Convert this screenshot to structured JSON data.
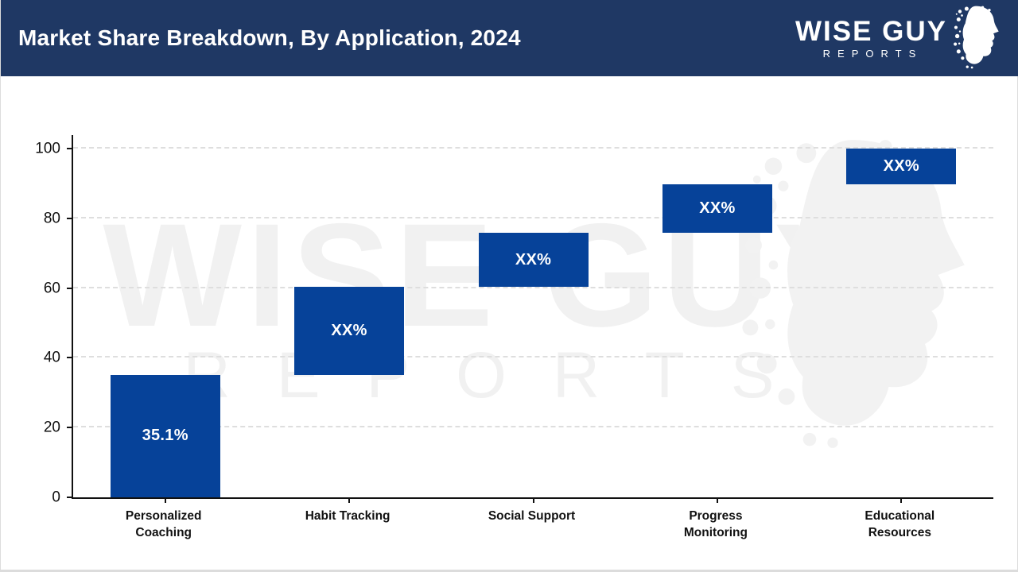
{
  "page": {
    "bg_color": "#ffffff",
    "border_color": "#dcdcdc"
  },
  "header": {
    "bg_color": "#1f3864",
    "title": "Market Share Breakdown, By Application, 2024",
    "logo": {
      "wordmark": "WISE GUY",
      "subtext": "REPORTS",
      "icon": "dotted-head-profile-icon"
    }
  },
  "watermark": {
    "line1": "WISE GUY",
    "line2": "REPORTS",
    "color": "#f1f1f1"
  },
  "chart_data": {
    "type": "bar",
    "subtype": "waterfall",
    "title": "Market Share Breakdown, By Application, 2024",
    "xlabel": "",
    "ylabel": "",
    "categories": [
      "Personalized Coaching",
      "Habit Tracking",
      "Social Support",
      "Progress Monitoring",
      "Educational Resources"
    ],
    "categories_lines": [
      [
        "Personalized",
        "Coaching"
      ],
      [
        "Habit Tracking"
      ],
      [
        "Social Support"
      ],
      [
        "Progress",
        "Monitoring"
      ],
      [
        "Educational",
        "Resources"
      ]
    ],
    "segments": [
      {
        "category": "Personalized Coaching",
        "start": 0,
        "end": 35.1,
        "label": "35.1%"
      },
      {
        "category": "Habit Tracking",
        "start": 35.1,
        "end": 60.3,
        "label": "XX%"
      },
      {
        "category": "Social Support",
        "start": 60.3,
        "end": 75.8,
        "label": "XX%"
      },
      {
        "category": "Progress Monitoring",
        "start": 75.8,
        "end": 89.8,
        "label": "XX%"
      },
      {
        "category": "Educational Resources",
        "start": 89.8,
        "end": 100,
        "label": "XX%"
      }
    ],
    "yticks": [
      0,
      20,
      40,
      60,
      80,
      100
    ],
    "ylim": [
      0,
      100
    ],
    "grid": "horizontal-dashed",
    "legend_position": "none",
    "bar_color": "#064299",
    "bar_label_color": "#ffffff",
    "axis_color": "#111111",
    "gridline_color": "#dedede"
  }
}
